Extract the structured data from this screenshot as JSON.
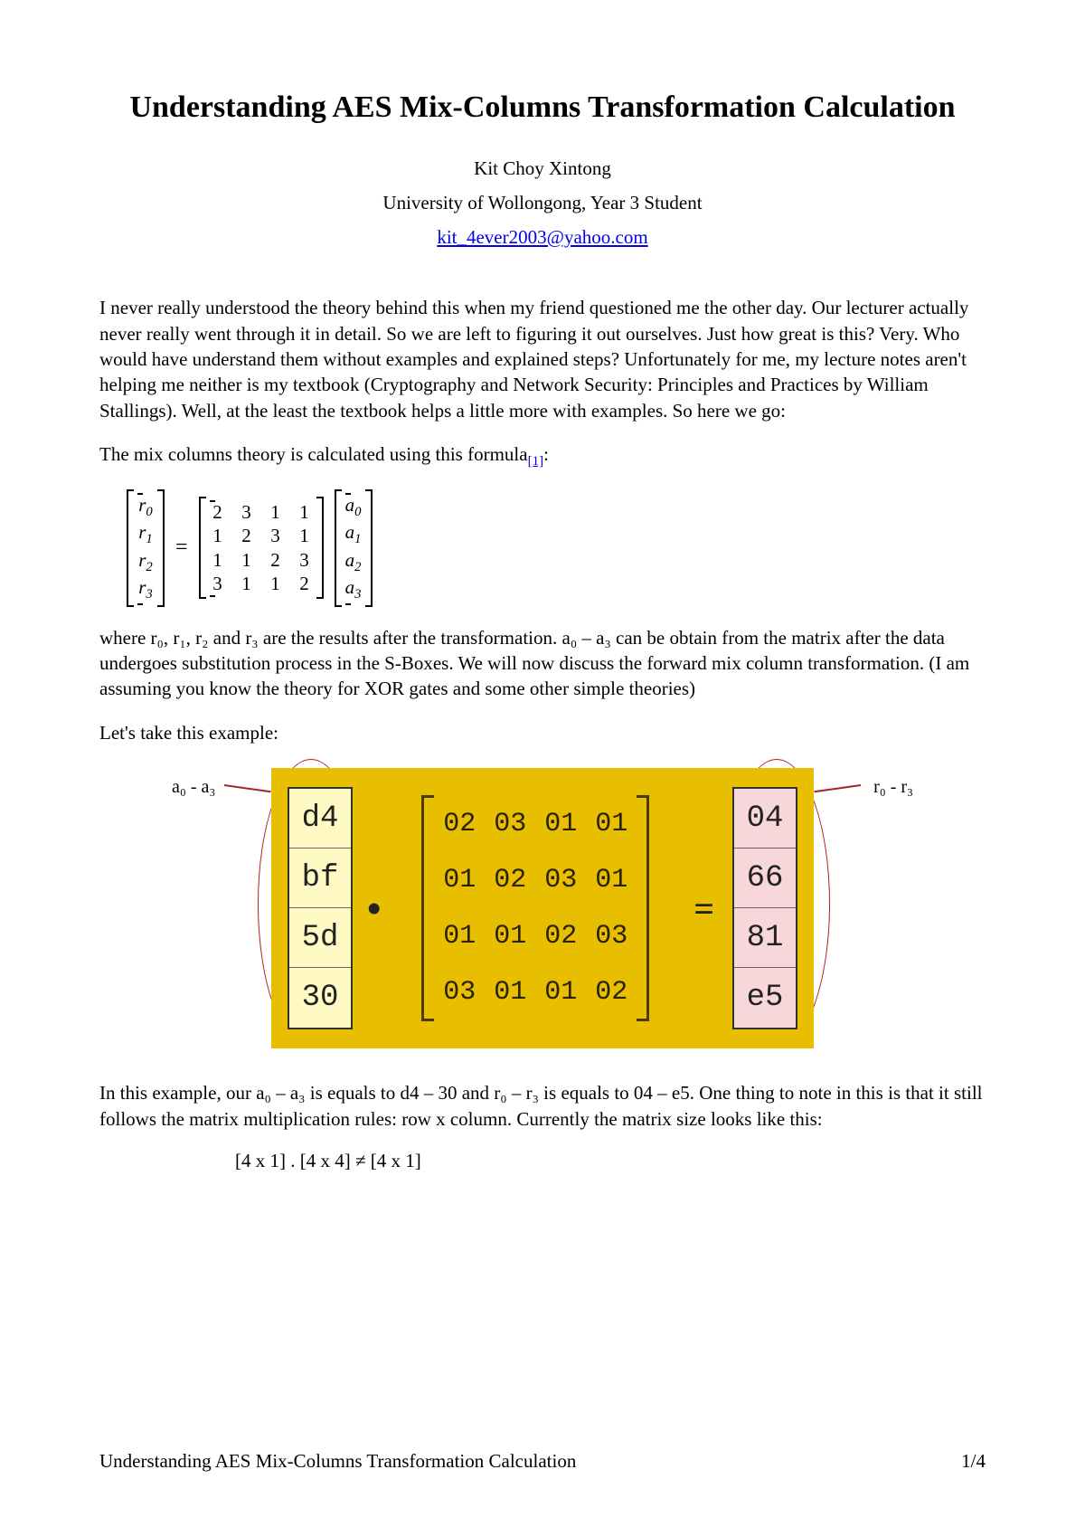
{
  "title": "Understanding AES Mix-Columns Transformation Calculation",
  "author": "Kit Choy Xintong",
  "affiliation": "University of Wollongong, Year 3 Student",
  "email": "kit_4ever2003@yahoo.com",
  "para1": "I never really understood the theory behind this when my friend questioned me the other day.  Our lecturer actually never really went through it in detail. So we are left to figuring it out ourselves. Just how great is this? Very. Who would have understand them without examples and explained steps? Unfortunately for me, my lecture notes aren't helping me neither is my textbook (Cryptography and Network Security: Principles and Practices by William Stallings).  Well, at the least the textbook helps a little more with examples. So here we go:",
  "para2_pre": "The mix columns theory is calculated using this formula",
  "ref1": "[1]",
  "para2_post": ":",
  "matrix_eq": {
    "r": [
      "r",
      "r",
      "r",
      "r"
    ],
    "r_sub": [
      "0",
      "1",
      "2",
      "3"
    ],
    "M": [
      [
        "2",
        "3",
        "1",
        "1"
      ],
      [
        "1",
        "2",
        "3",
        "1"
      ],
      [
        "1",
        "1",
        "2",
        "3"
      ],
      [
        "3",
        "1",
        "1",
        "2"
      ]
    ],
    "a": [
      "a",
      "a",
      "a",
      "a"
    ],
    "a_sub": [
      "0",
      "1",
      "2",
      "3"
    ],
    "eq": "="
  },
  "para3": "where r₀, r₁, r₂ and r₃ are the results after the transformation. a₀ – a₃ can be obtain from the matrix after the data undergoes substitution process in the S-Boxes. We will now discuss the forward mix column transformation. (I am assuming you know the theory for XOR gates and some other simple theories)",
  "para4": "Let's take this example:",
  "diagram": {
    "label_left": "a₀ - a₃",
    "label_right": "r₀ - r₃",
    "input_vec": [
      "d4",
      "bf",
      "5d",
      "30"
    ],
    "mix_matrix": [
      [
        "02",
        "03",
        "01",
        "01"
      ],
      [
        "01",
        "02",
        "03",
        "01"
      ],
      [
        "01",
        "01",
        "02",
        "03"
      ],
      [
        "03",
        "01",
        "01",
        "02"
      ]
    ],
    "output_vec": [
      "04",
      "66",
      "81",
      "e5"
    ],
    "dot": "•",
    "equals": "=",
    "bg_color": "#e8be00",
    "input_cell_color": "#fff9c4",
    "output_cell_color": "#f8d7da",
    "ellipse_color": "#aa2222",
    "matrix_text_color": "#2a2200",
    "mono_font": "Courier New"
  },
  "para5": "In this example, our a₀ – a₃ is equals to d4 – 30 and r₀ – r₃ is equals to 04 – e5. One thing to note in this is that it still follows the matrix multiplication rules: row x column. Currently the matrix size looks like this:",
  "size_formula": "[4 x 1] . [4 x 4] ≠ [4 x 1]",
  "footer_title": "Understanding AES Mix-Columns Transformation Calculation",
  "page_num": "1/4",
  "colors": {
    "link": "#0000ee",
    "text": "#000000",
    "bg": "#ffffff"
  }
}
